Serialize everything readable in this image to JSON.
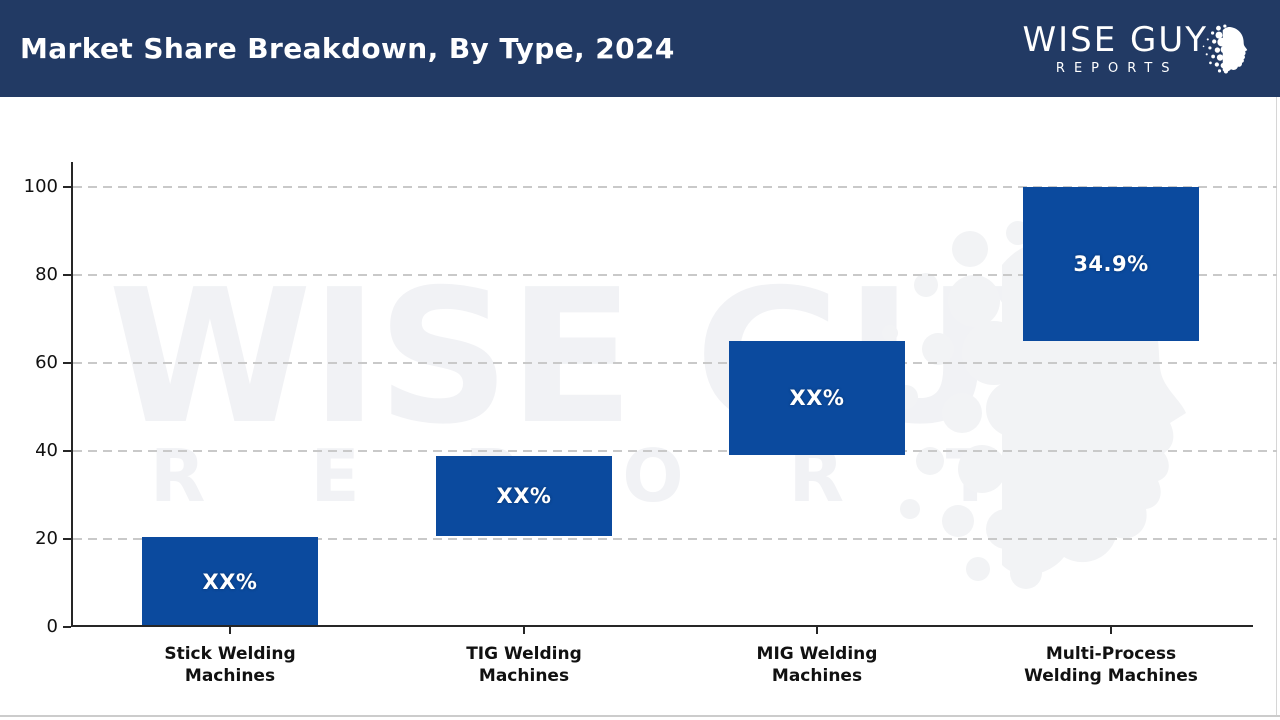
{
  "header": {
    "title": "Market Share Breakdown, By Type, 2024",
    "bg_color": "#223a64",
    "logo": {
      "line1": "WISE GUY",
      "line2": "REPORTS"
    }
  },
  "watermark": {
    "line1": "WISE GUY",
    "line2": "REPORTS"
  },
  "chart_data": {
    "type": "bar",
    "subtype": "floating-waterfall",
    "title": "Market Share Breakdown, By Type, 2024",
    "categories": [
      [
        "Stick Welding",
        "Machines"
      ],
      [
        "TIG Welding",
        "Machines"
      ],
      [
        "MIG Welding",
        "Machines"
      ],
      [
        "Multi-Process",
        "Welding Machines"
      ]
    ],
    "segments": [
      {
        "name": "Stick Welding Machines",
        "start": 0,
        "end": 20.5,
        "label": "XX%"
      },
      {
        "name": "TIG Welding Machines",
        "start": 20.7,
        "end": 38.9,
        "label": "XX%"
      },
      {
        "name": "MIG Welding Machines",
        "start": 39.1,
        "end": 65.1,
        "label": "XX%"
      },
      {
        "name": "Multi-Process Welding Machines",
        "start": 65.1,
        "end": 100,
        "label": "34.9%"
      }
    ],
    "yticks": [
      0,
      20,
      40,
      60,
      80,
      100
    ],
    "ylim": [
      0,
      105.5
    ],
    "bar_color": "#0b4a9e",
    "value_label_color": "#ffffff",
    "axis_color": "#262626",
    "grid": {
      "show": true,
      "style": "dashed",
      "orientation": "horizontal",
      "color": "#c9c9c9"
    },
    "watermark_color": "#f2f3f5",
    "legend": null
  }
}
